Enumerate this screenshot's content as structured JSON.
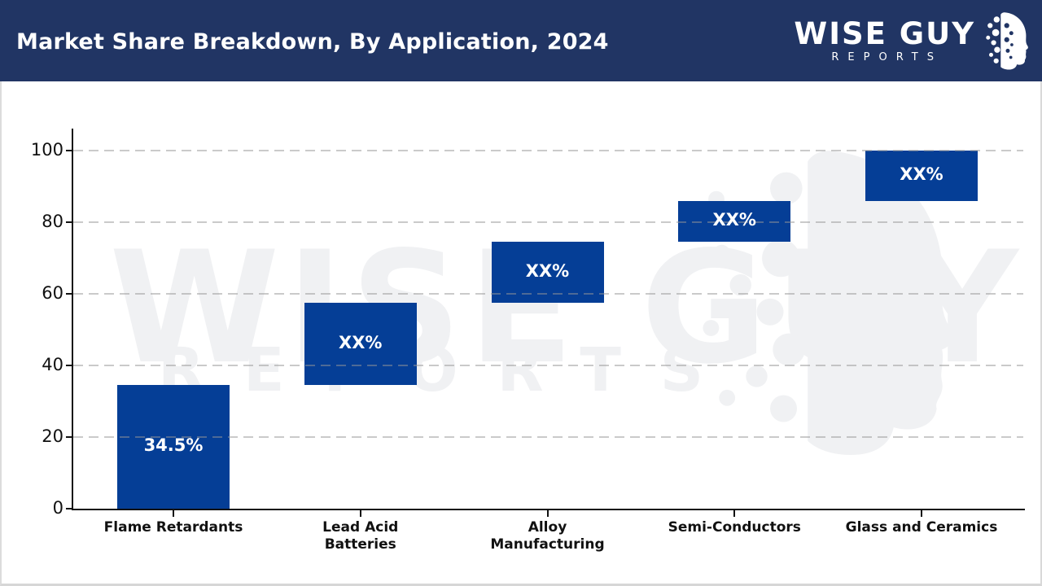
{
  "header": {
    "title": "Market Share Breakdown, By Application, 2024",
    "bg_color": "#213564",
    "logo": {
      "line1": "WISE GUY",
      "line2": "REPORTS"
    }
  },
  "watermark": {
    "line1": "WISE GUY",
    "line2": "REPORTS"
  },
  "chart_data": {
    "type": "bar",
    "subtype": "waterfall",
    "title": "Market Share Breakdown, By Application, 2024",
    "categories": [
      "Flame Retardants",
      "Lead Acid Batteries",
      "Alloy Manufacturing",
      "Semi-Conductors",
      "Glass and Ceramics"
    ],
    "category_label_lines": [
      [
        "Flame Retardants"
      ],
      [
        "Lead Acid",
        "Batteries"
      ],
      [
        "Alloy",
        "Manufacturing"
      ],
      [
        "Semi-Conductors"
      ],
      [
        "Glass and Ceramics"
      ]
    ],
    "segments": [
      {
        "category": "Flame Retardants",
        "start": 0,
        "end": 34.5,
        "value": 34.5,
        "label": "34.5%"
      },
      {
        "category": "Lead Acid Batteries",
        "start": 34.5,
        "end": 57.5,
        "value": 23,
        "label": "XX%"
      },
      {
        "category": "Alloy Manufacturing",
        "start": 57.5,
        "end": 74.5,
        "value": 17,
        "label": "XX%"
      },
      {
        "category": "Semi-Conductors",
        "start": 74.5,
        "end": 86,
        "value": 11.5,
        "label": "XX%"
      },
      {
        "category": "Glass and Ceramics",
        "start": 86,
        "end": 100,
        "value": 14,
        "label": "XX%"
      }
    ],
    "ylim": [
      0,
      100
    ],
    "yticks": [
      0,
      20,
      40,
      60,
      80,
      100
    ],
    "bar_color": "#053E96",
    "grid": "horizontal-dashed",
    "legend": false
  }
}
